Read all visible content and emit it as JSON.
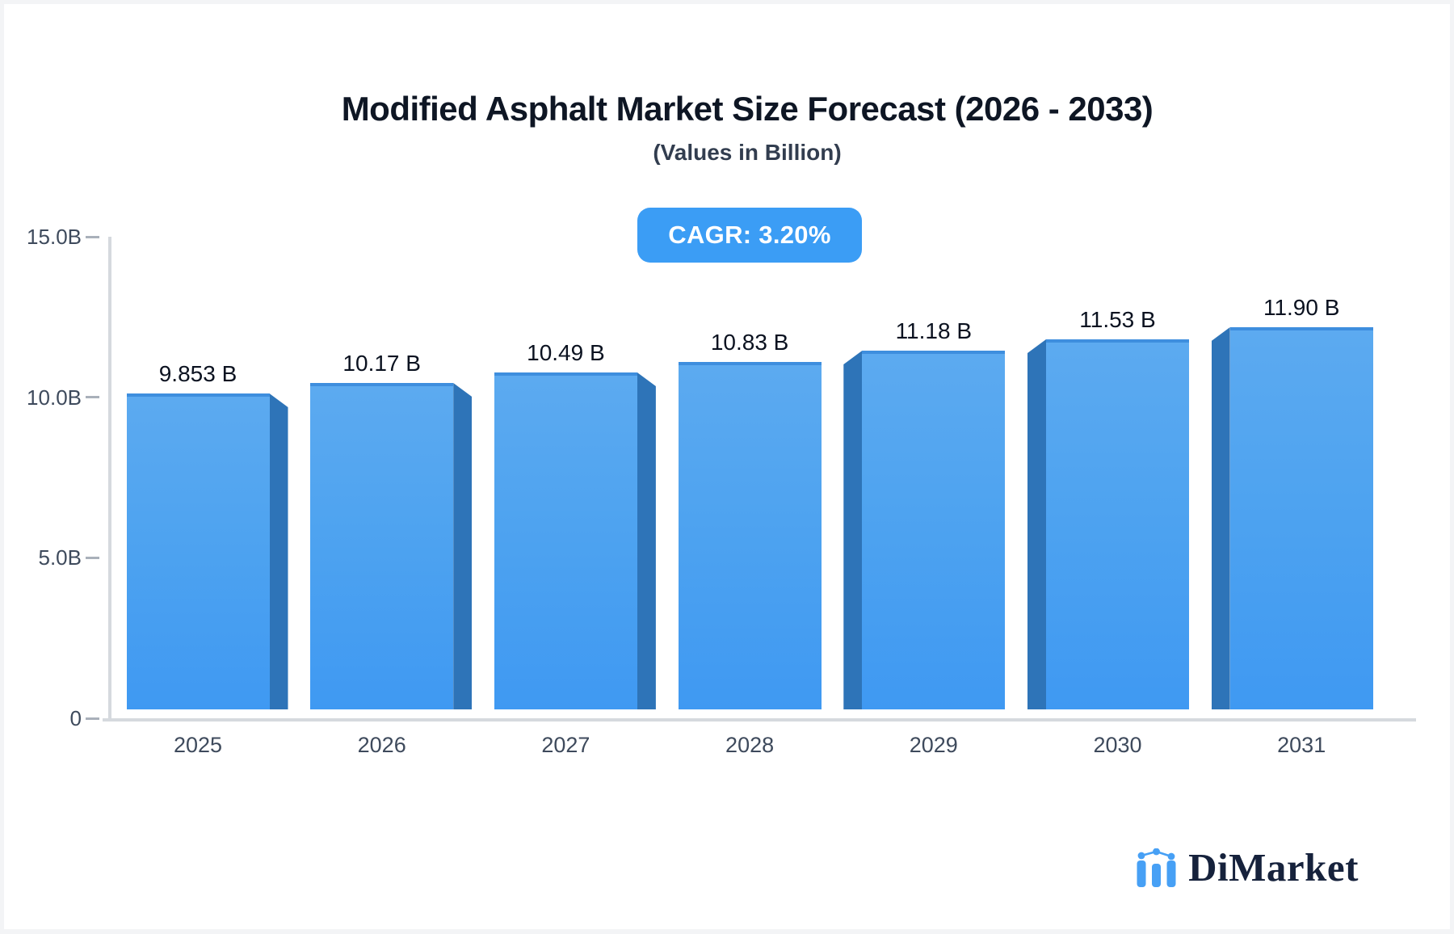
{
  "frame": {
    "background": "#f3f4f6",
    "card_background": "#ffffff"
  },
  "header": {
    "title": "Modified Asphalt Market Size Forecast (2026 - 2033)",
    "subtitle": "(Values in Billion)",
    "badge": "CAGR: 3.20%",
    "badge_color": "#3b9df5"
  },
  "chart_data": {
    "type": "bar",
    "title": "Modified Asphalt Market Size Forecast (2026 - 2033)",
    "subtitle": "(Values in Billion)",
    "annotation": "CAGR: 3.20%",
    "categories": [
      "2025",
      "2026",
      "2027",
      "2028",
      "2029",
      "2030",
      "2031"
    ],
    "values": [
      9.853,
      10.17,
      10.49,
      10.83,
      11.18,
      11.53,
      11.9
    ],
    "value_labels": [
      "9.853 B",
      "10.17 B",
      "10.49 B",
      "10.83 B",
      "11.18 B",
      "11.53 B",
      "11.90 B"
    ],
    "xlabel": "",
    "ylabel": "",
    "ylim": [
      0,
      15
    ],
    "yticks": [
      {
        "label": "15.0B",
        "value": 15
      },
      {
        "label": "10.0B",
        "value": 10
      },
      {
        "label": "5.0B",
        "value": 5
      },
      {
        "label": "0",
        "value": 0
      }
    ],
    "grid": false,
    "legend": false,
    "colors": {
      "bar_face_top": "#5caaf0",
      "bar_face_bottom": "#3f99f2",
      "bar_top_edge": "#3e8ede",
      "bar_side_shadow": "#2e74b8",
      "axis_line": "#d5d9de"
    },
    "bar_3d_side_pattern": [
      "right",
      "right",
      "right",
      "none",
      "left",
      "left",
      "left"
    ]
  },
  "logo": {
    "text": "DiMarket",
    "text_color": "#16223c",
    "icon": "bar-line-chart-icon",
    "icon_color": "#47a0f5"
  }
}
